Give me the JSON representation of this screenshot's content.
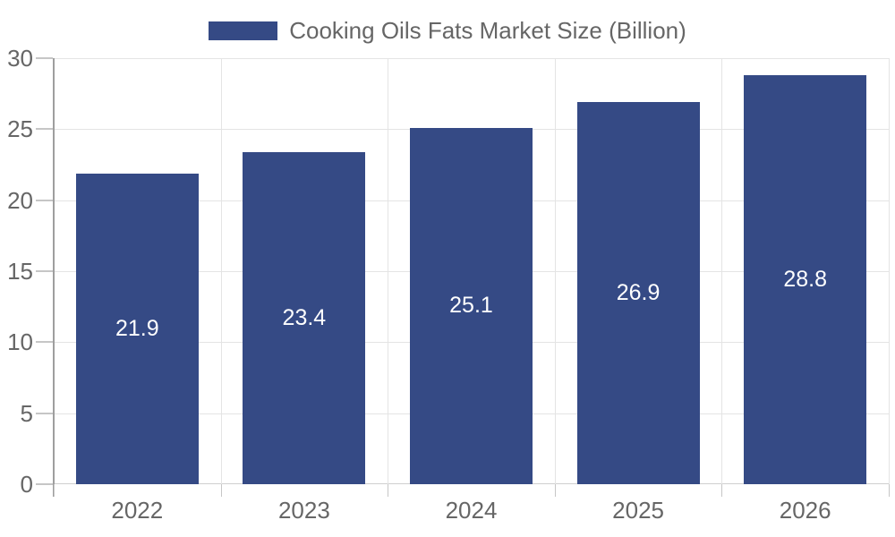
{
  "chart_data": {
    "type": "bar",
    "legend_label": "Cooking Oils Fats Market Size (Billion)",
    "categories": [
      "2022",
      "2023",
      "2024",
      "2025",
      "2026"
    ],
    "series": [
      {
        "name": "Cooking Oils Fats Market Size (Billion)",
        "values": [
          21.9,
          23.4,
          25.1,
          26.9,
          28.8
        ]
      }
    ],
    "value_labels": [
      "21.9",
      "23.4",
      "25.1",
      "26.9",
      "28.8"
    ],
    "xlabel": "",
    "ylabel": "",
    "ylim": [
      0,
      30
    ],
    "yticks": [
      0,
      5,
      10,
      15,
      20,
      25,
      30
    ],
    "grid": true,
    "legend_position": "top-center",
    "colors": {
      "bar": "#354a85",
      "value_label": "#ffffff",
      "axis_text": "#666666",
      "legend_text": "#666666",
      "gridline": "#e4e4e4",
      "baseline": "#cfcfcf",
      "axis_line": "#9e9e9e",
      "tick_line": "#c6c6c6"
    }
  }
}
